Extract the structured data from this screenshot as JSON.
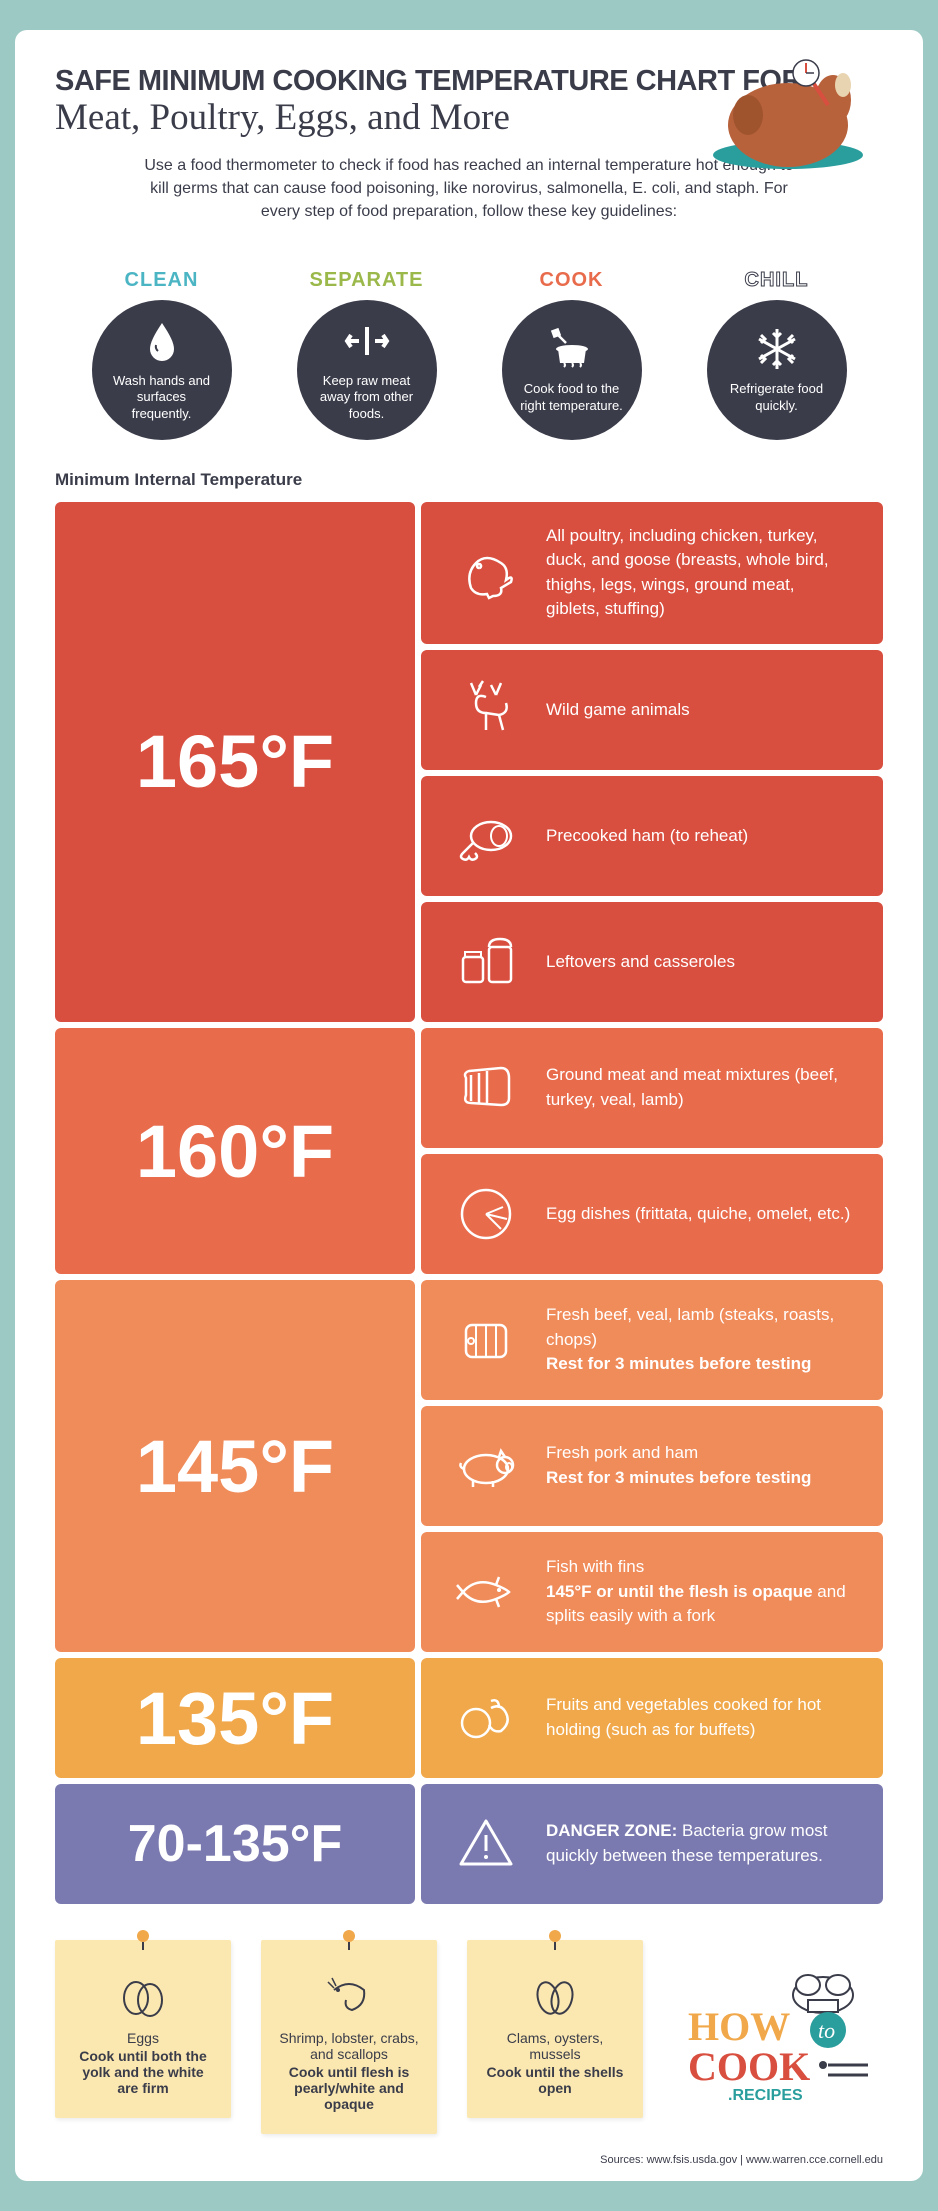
{
  "title_line1": "SAFE MINIMUM COOKING TEMPERATURE CHART FOR",
  "title_line2": "Meat, Poultry, Eggs, and More",
  "intro": "Use a food thermometer to check if food has reached an internal temperature hot enough to kill germs that can cause food poisoning, like norovirus, salmonella, E. coli, and staph. For every step of food preparation, follow these key guidelines:",
  "steps": [
    {
      "title": "CLEAN",
      "color": "#4cb5c4",
      "desc": "Wash hands and surfaces frequently."
    },
    {
      "title": "SEPARATE",
      "color": "#9bb84a",
      "desc": "Keep raw meat away from other foods."
    },
    {
      "title": "COOK",
      "color": "#e86b4c",
      "desc": "Cook food to the right temperature."
    },
    {
      "title": "CHILL",
      "color": "#ffffff",
      "desc": "Refrigerate food quickly."
    }
  ],
  "section_label": "Minimum Internal Temperature",
  "rows": [
    {
      "temp": "165°F",
      "bg": "bg-165",
      "foods": [
        {
          "text": "All poultry, including chicken, turkey, duck, and goose (breasts, whole bird, thighs, legs, wings, ground meat, giblets, stuffing)"
        },
        {
          "text": "Wild game animals"
        },
        {
          "text": "Precooked ham (to reheat)"
        },
        {
          "text": "Leftovers and casseroles"
        }
      ]
    },
    {
      "temp": "160°F",
      "bg": "bg-160",
      "foods": [
        {
          "text": "Ground meat and meat mixtures (beef, turkey, veal, lamb)"
        },
        {
          "text": "Egg dishes (frittata, quiche, omelet, etc.)"
        }
      ]
    },
    {
      "temp": "145°F",
      "bg": "bg-145",
      "foods": [
        {
          "text": "Fresh beef, veal, lamb (steaks, roasts, chops)",
          "bold": "Rest for 3 minutes before testing"
        },
        {
          "text": "Fresh pork and ham",
          "bold": "Rest for 3 minutes before testing"
        },
        {
          "text": "Fish with fins",
          "bold": "145°F or until the flesh is opaque",
          "after": " and splits easily with a fork"
        }
      ]
    },
    {
      "temp": "135°F",
      "bg": "bg-135",
      "foods": [
        {
          "text": "Fruits and vegetables cooked for hot holding (such as for buffets)"
        }
      ]
    },
    {
      "temp": "70-135°F",
      "bg": "bg-danger",
      "small": true,
      "foods": [
        {
          "bold": "DANGER ZONE:",
          "after": " Bacteria grow most quickly between these temperatures."
        }
      ]
    }
  ],
  "notes": [
    {
      "title": "Eggs",
      "bold": "Cook until both the yolk and the white are firm"
    },
    {
      "title": "Shrimp, lobster, crabs, and scallops",
      "bold": "Cook until flesh is pearly/white and opaque"
    },
    {
      "title": "Clams, oysters, mussels",
      "bold": "Cook until the shells open"
    }
  ],
  "logo_text1": "HOW",
  "logo_text2": "to",
  "logo_text3": "COOK",
  "logo_text4": ".RECIPES",
  "sources": "Sources: www.fsis.usda.gov | www.warren.cce.cornell.edu",
  "colors": {
    "page_bg": "#9cc9c4",
    "card_bg": "#ffffff",
    "text": "#3a3c4a",
    "circle": "#3a3c4a",
    "note_bg": "#fbe8b0"
  }
}
